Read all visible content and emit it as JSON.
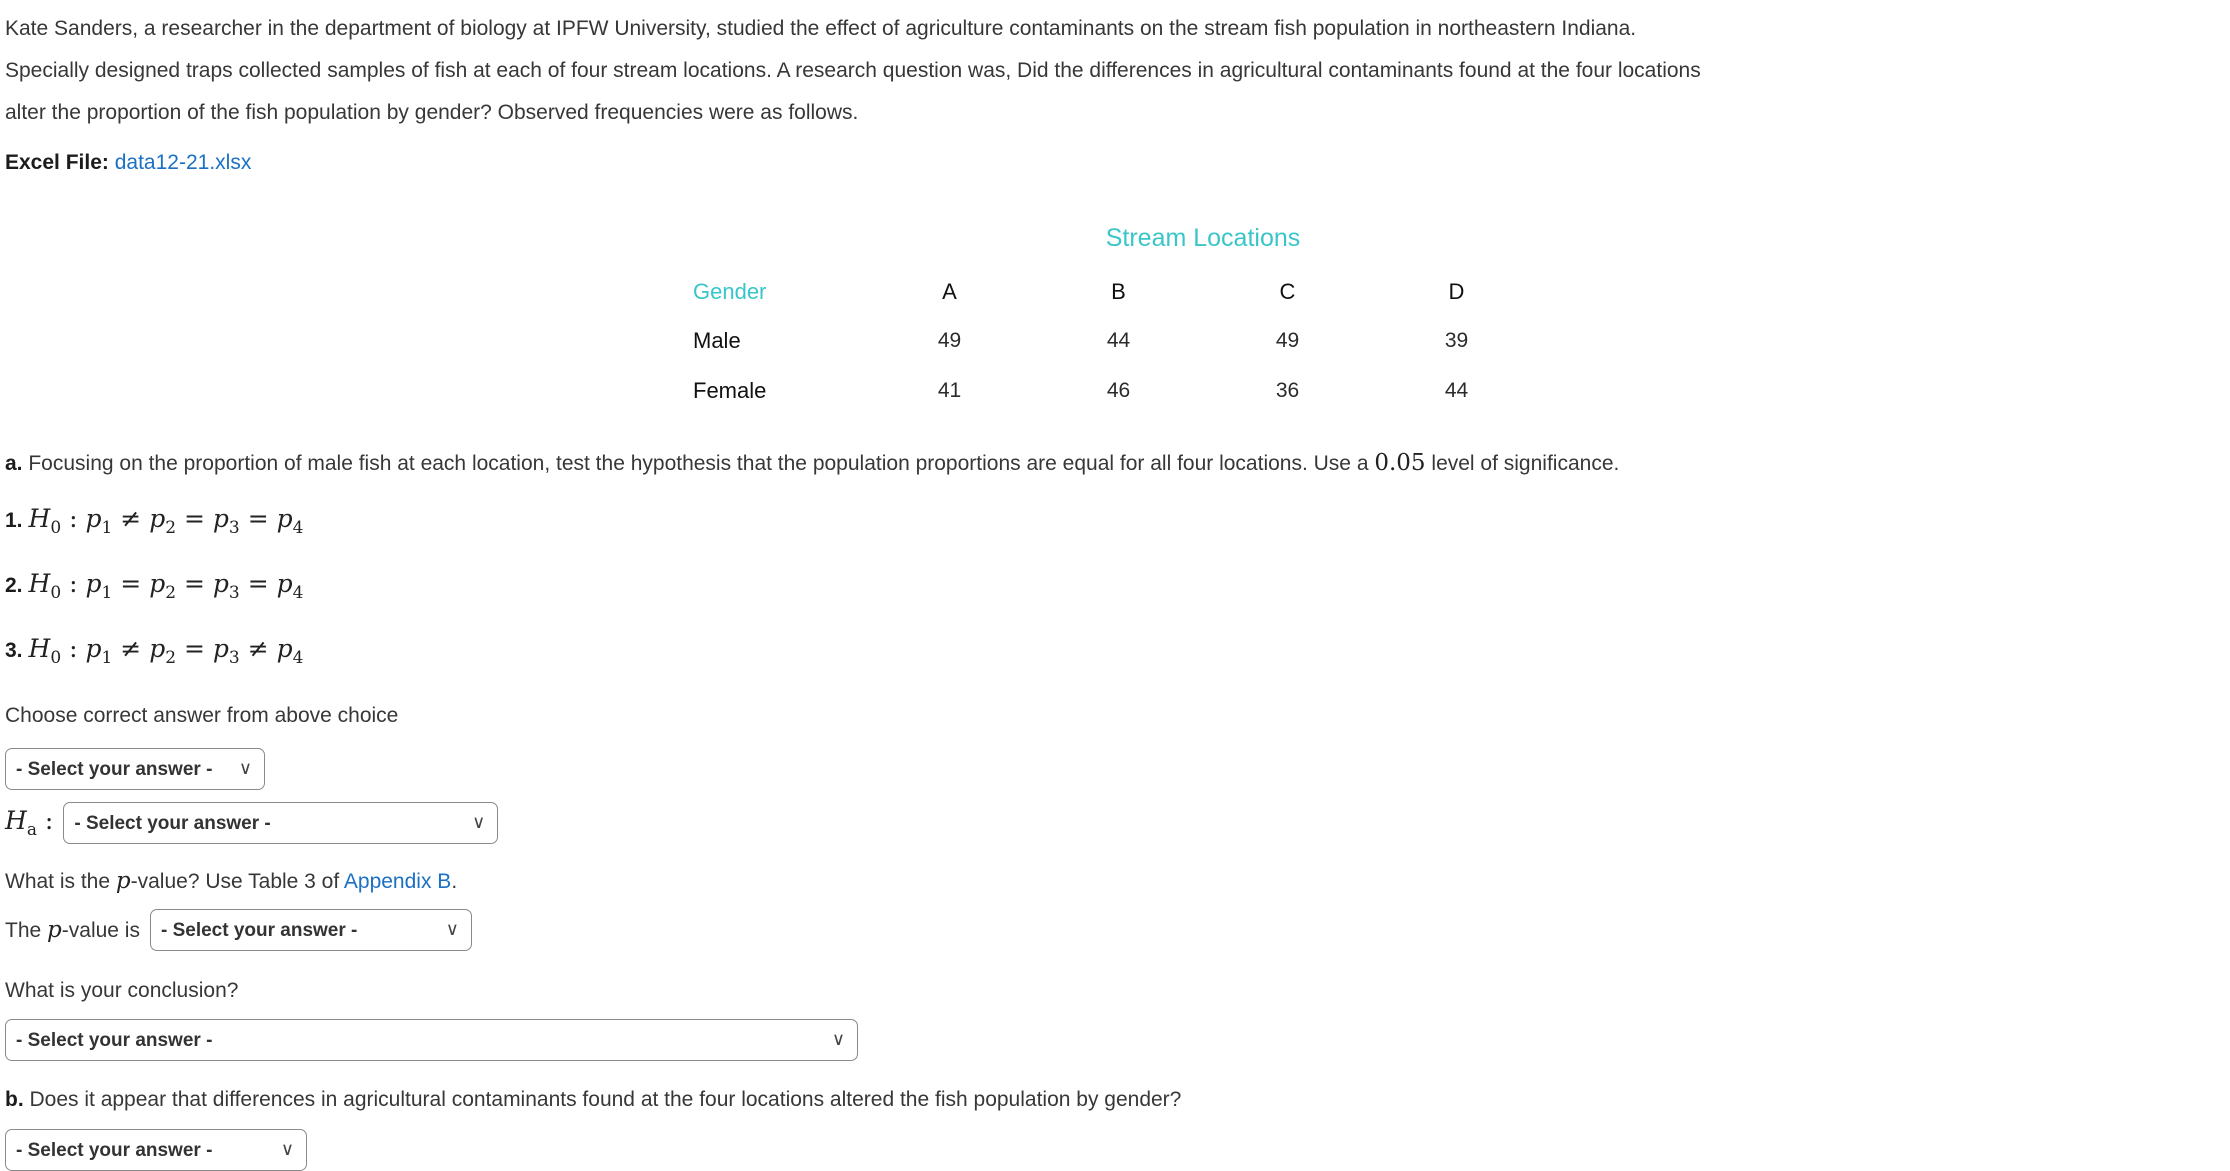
{
  "colors": {
    "accent_teal": "#3ac6c9",
    "link_blue": "#1a70c4",
    "text": "#373737"
  },
  "icons": {
    "chevron_down": "∨"
  },
  "intro": {
    "lines": [
      "Kate Sanders, a researcher in the department of biology at IPFW University, studied the effect of agriculture contaminants on the stream fish population in northeastern Indiana.",
      "Specially designed traps collected samples of fish at each of four stream locations. A research question was, Did the differences in agricultural contaminants found at the four locations",
      "alter the proportion of the fish population by gender? Observed frequencies were as follows."
    ]
  },
  "excel": {
    "label": "Excel File:",
    "filename": "data12-21.xlsx"
  },
  "table": {
    "title": "Stream Locations",
    "row_header_label": "Gender",
    "columns": [
      "A",
      "B",
      "C",
      "D"
    ],
    "rows": [
      {
        "label": "Male",
        "values": [
          49,
          44,
          49,
          39
        ]
      },
      {
        "label": "Female",
        "values": [
          41,
          46,
          36,
          44
        ]
      }
    ]
  },
  "part_a": {
    "label": "a.",
    "pre": " Focusing on the proportion of male fish at each location, test the hypothesis that the population proportions are equal for all four locations. Use a ",
    "alpha": "0.05",
    "suffix": " level of significance."
  },
  "hypotheses": [
    {
      "num": "1.",
      "formula": "H_0 : p_1 ≠ p_2 = p_3 = p_4"
    },
    {
      "num": "2.",
      "formula": "H_0 : p_1 = p_2 = p_3 = p_4"
    },
    {
      "num": "3.",
      "formula": "H_0 : p_1 ≠ p_2 = p_3 ≠ p_4"
    }
  ],
  "choose_prompt": "Choose correct answer from above choice",
  "select_placeholder": "- Select your answer -",
  "ha_label": "H_a :",
  "pvalue_question": {
    "pre": "What is the ",
    "p": "p",
    "mid": "-value? Use Table 3 of ",
    "link": "Appendix B",
    "suffix": "."
  },
  "pvalue_line": {
    "pre": "The ",
    "p": "p",
    "mid": "-value is"
  },
  "conclusion_question": "What is your conclusion?",
  "part_b": {
    "label": "b.",
    "text": " Does it appear that differences in agricultural contaminants found at the four locations altered the fish population by gender?"
  }
}
